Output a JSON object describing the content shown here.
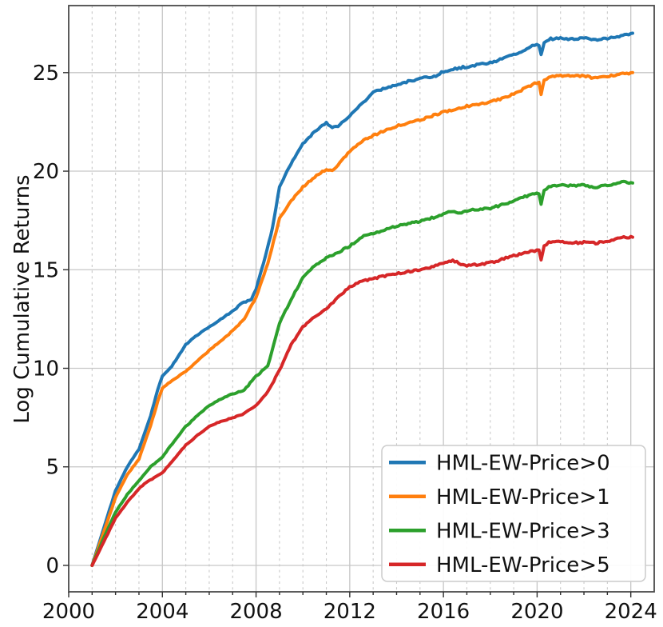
{
  "figure": {
    "ylabel": "Log Cumulative Returns"
  },
  "chart_data": {
    "type": "line",
    "title": "",
    "xlabel": "",
    "ylabel": "Log Cumulative Returns",
    "xlim": [
      2000,
      2025
    ],
    "ylim": [
      -1.34,
      28.4
    ],
    "xticks_major": [
      2000,
      2004,
      2008,
      2012,
      2016,
      2020,
      2024
    ],
    "xticks_minor_start": 2001,
    "xticks_minor_end": 2024,
    "yticks": [
      0,
      5,
      10,
      15,
      20,
      25
    ],
    "grid": {
      "major": "solid",
      "minor_x": "dashed",
      "major_color": "#c6c6c6",
      "minor_color": "#c9c9c9"
    },
    "legend_position": "lower right",
    "axis_color": "#4a4a4a",
    "tick_label_color": "#111111",
    "line_width": 4,
    "series": [
      {
        "name": "HML-EW-Price>0",
        "color": "#1f77b4",
        "points": [
          [
            2001.0,
            0
          ],
          [
            2001.5,
            1.9
          ],
          [
            2002.0,
            3.8
          ],
          [
            2002.5,
            5.0
          ],
          [
            2003.0,
            5.9
          ],
          [
            2003.5,
            7.6
          ],
          [
            2003.8,
            8.9
          ],
          [
            2004.0,
            9.6
          ],
          [
            2004.4,
            10.1
          ],
          [
            2005.0,
            11.2
          ],
          [
            2005.5,
            11.7
          ],
          [
            2006.0,
            12.1
          ],
          [
            2006.5,
            12.5
          ],
          [
            2007.0,
            12.9
          ],
          [
            2007.4,
            13.3
          ],
          [
            2007.8,
            13.5
          ],
          [
            2008.0,
            14.0
          ],
          [
            2008.4,
            15.7
          ],
          [
            2008.7,
            17.1
          ],
          [
            2009.0,
            19.2
          ],
          [
            2009.4,
            20.2
          ],
          [
            2010.0,
            21.4
          ],
          [
            2010.5,
            22.0
          ],
          [
            2011.0,
            22.45
          ],
          [
            2011.25,
            22.2
          ],
          [
            2011.5,
            22.3
          ],
          [
            2012.0,
            22.8
          ],
          [
            2012.5,
            23.4
          ],
          [
            2013.0,
            24.0
          ],
          [
            2013.5,
            24.2
          ],
          [
            2014.0,
            24.4
          ],
          [
            2015.0,
            24.7
          ],
          [
            2015.6,
            24.8
          ],
          [
            2016.0,
            25.05
          ],
          [
            2016.5,
            25.2
          ],
          [
            2017.0,
            25.3
          ],
          [
            2018.0,
            25.5
          ],
          [
            2019.0,
            25.9
          ],
          [
            2019.8,
            26.35
          ],
          [
            2020.08,
            26.4
          ],
          [
            2020.17,
            25.9
          ],
          [
            2020.3,
            26.5
          ],
          [
            2020.5,
            26.7
          ],
          [
            2021.0,
            26.75
          ],
          [
            2021.5,
            26.7
          ],
          [
            2022.0,
            26.75
          ],
          [
            2022.4,
            26.65
          ],
          [
            2023.0,
            26.75
          ],
          [
            2023.5,
            26.85
          ],
          [
            2024.08,
            27.0
          ]
        ]
      },
      {
        "name": "HML-EW-Price>1",
        "color": "#ff7f0e",
        "points": [
          [
            2001.0,
            0
          ],
          [
            2001.5,
            1.7
          ],
          [
            2002.0,
            3.45
          ],
          [
            2002.5,
            4.6
          ],
          [
            2003.0,
            5.4
          ],
          [
            2003.5,
            7.1
          ],
          [
            2003.8,
            8.3
          ],
          [
            2004.0,
            9.0
          ],
          [
            2004.5,
            9.45
          ],
          [
            2005.0,
            9.85
          ],
          [
            2006.0,
            10.9
          ],
          [
            2006.5,
            11.4
          ],
          [
            2007.0,
            11.9
          ],
          [
            2007.5,
            12.5
          ],
          [
            2008.0,
            13.6
          ],
          [
            2008.5,
            15.3
          ],
          [
            2009.0,
            17.6
          ],
          [
            2009.5,
            18.5
          ],
          [
            2010.0,
            19.2
          ],
          [
            2010.5,
            19.7
          ],
          [
            2011.0,
            20.1
          ],
          [
            2011.25,
            20.0
          ],
          [
            2012.0,
            21.0
          ],
          [
            2012.6,
            21.6
          ],
          [
            2013.0,
            21.8
          ],
          [
            2014.0,
            22.3
          ],
          [
            2015.0,
            22.6
          ],
          [
            2016.0,
            23.0
          ],
          [
            2017.0,
            23.3
          ],
          [
            2018.0,
            23.5
          ],
          [
            2019.0,
            23.9
          ],
          [
            2019.8,
            24.4
          ],
          [
            2020.08,
            24.5
          ],
          [
            2020.17,
            23.9
          ],
          [
            2020.3,
            24.6
          ],
          [
            2020.5,
            24.8
          ],
          [
            2021.0,
            24.85
          ],
          [
            2021.5,
            24.8
          ],
          [
            2022.0,
            24.85
          ],
          [
            2022.4,
            24.7
          ],
          [
            2023.0,
            24.8
          ],
          [
            2023.5,
            24.9
          ],
          [
            2024.08,
            25.0
          ]
        ]
      },
      {
        "name": "HML-EW-Price>3",
        "color": "#2ca02c",
        "points": [
          [
            2001.0,
            0
          ],
          [
            2001.5,
            1.4
          ],
          [
            2002.0,
            2.7
          ],
          [
            2002.5,
            3.6
          ],
          [
            2003.0,
            4.3
          ],
          [
            2003.5,
            5.0
          ],
          [
            2004.0,
            5.5
          ],
          [
            2004.5,
            6.3
          ],
          [
            2005.0,
            7.05
          ],
          [
            2005.5,
            7.6
          ],
          [
            2006.0,
            8.1
          ],
          [
            2006.5,
            8.45
          ],
          [
            2007.0,
            8.7
          ],
          [
            2007.5,
            8.9
          ],
          [
            2008.0,
            9.6
          ],
          [
            2008.5,
            10.1
          ],
          [
            2009.0,
            12.3
          ],
          [
            2009.5,
            13.5
          ],
          [
            2010.0,
            14.6
          ],
          [
            2010.5,
            15.2
          ],
          [
            2011.0,
            15.6
          ],
          [
            2011.3,
            15.75
          ],
          [
            2012.0,
            16.2
          ],
          [
            2012.6,
            16.75
          ],
          [
            2013.0,
            16.85
          ],
          [
            2014.0,
            17.2
          ],
          [
            2015.0,
            17.45
          ],
          [
            2016.0,
            17.8
          ],
          [
            2016.3,
            17.95
          ],
          [
            2016.7,
            17.9
          ],
          [
            2017.0,
            18.0
          ],
          [
            2018.0,
            18.1
          ],
          [
            2019.0,
            18.5
          ],
          [
            2019.8,
            18.85
          ],
          [
            2020.08,
            18.9
          ],
          [
            2020.17,
            18.3
          ],
          [
            2020.3,
            19.0
          ],
          [
            2020.5,
            19.2
          ],
          [
            2021.0,
            19.3
          ],
          [
            2021.5,
            19.25
          ],
          [
            2022.0,
            19.3
          ],
          [
            2022.4,
            19.15
          ],
          [
            2023.0,
            19.3
          ],
          [
            2023.7,
            19.45
          ],
          [
            2024.08,
            19.4
          ]
        ]
      },
      {
        "name": "HML-EW-Price>5",
        "color": "#d62728",
        "points": [
          [
            2001.0,
            0
          ],
          [
            2001.5,
            1.2
          ],
          [
            2002.0,
            2.4
          ],
          [
            2002.5,
            3.2
          ],
          [
            2003.0,
            3.9
          ],
          [
            2003.3,
            4.2
          ],
          [
            2004.0,
            4.7
          ],
          [
            2004.5,
            5.4
          ],
          [
            2005.0,
            6.1
          ],
          [
            2005.5,
            6.6
          ],
          [
            2006.0,
            7.05
          ],
          [
            2006.5,
            7.3
          ],
          [
            2007.0,
            7.5
          ],
          [
            2007.5,
            7.7
          ],
          [
            2008.0,
            8.1
          ],
          [
            2008.5,
            8.8
          ],
          [
            2009.0,
            9.9
          ],
          [
            2009.5,
            11.2
          ],
          [
            2010.0,
            12.1
          ],
          [
            2010.5,
            12.6
          ],
          [
            2011.0,
            13.0
          ],
          [
            2011.3,
            13.35
          ],
          [
            2012.0,
            14.15
          ],
          [
            2012.6,
            14.45
          ],
          [
            2013.0,
            14.55
          ],
          [
            2014.0,
            14.8
          ],
          [
            2015.0,
            15.0
          ],
          [
            2016.0,
            15.3
          ],
          [
            2016.4,
            15.45
          ],
          [
            2017.0,
            15.2
          ],
          [
            2018.0,
            15.35
          ],
          [
            2019.0,
            15.7
          ],
          [
            2019.8,
            15.95
          ],
          [
            2020.08,
            16.0
          ],
          [
            2020.17,
            15.5
          ],
          [
            2020.3,
            16.2
          ],
          [
            2020.5,
            16.4
          ],
          [
            2021.0,
            16.45
          ],
          [
            2021.5,
            16.35
          ],
          [
            2022.0,
            16.4
          ],
          [
            2022.5,
            16.35
          ],
          [
            2023.0,
            16.45
          ],
          [
            2023.7,
            16.65
          ],
          [
            2024.08,
            16.65
          ]
        ]
      }
    ]
  }
}
